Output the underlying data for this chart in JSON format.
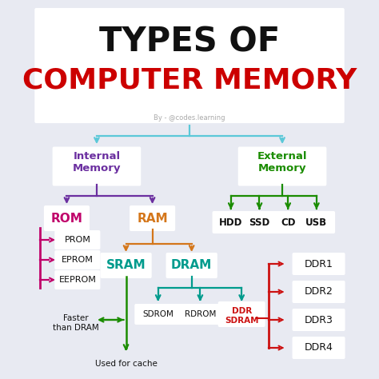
{
  "title_line1": "TYPES OF",
  "title_line2": "COMPUTER MEMORY",
  "title_color1": "#111111",
  "title_color2": "#cc0000",
  "bg_color": "#e8eaf2",
  "credit": "By - @codes.learning",
  "cyan": "#5bc8d8",
  "purple": "#6b2fa0",
  "green": "#1a8c00",
  "orange": "#d4761a",
  "teal": "#009b8d",
  "red": "#cc1111",
  "pink": "#c0006a",
  "dark": "#111111"
}
